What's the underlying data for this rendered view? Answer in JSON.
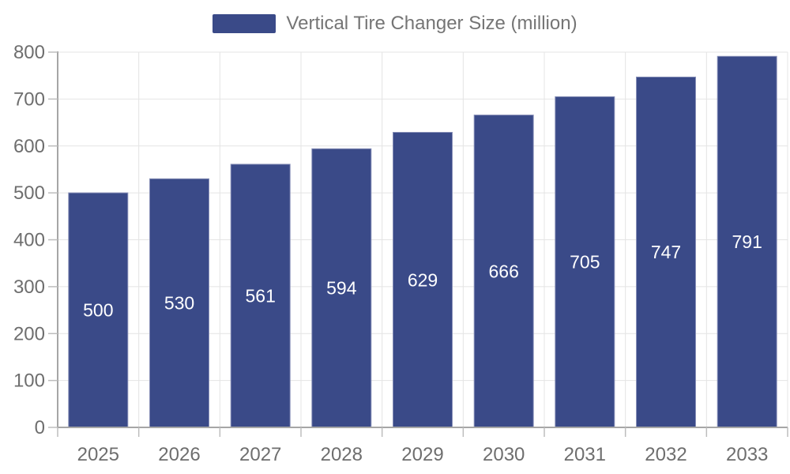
{
  "legend": {
    "label": "Vertical Tire Changer Size (million)",
    "swatch_color": "#3A4A88"
  },
  "chart_data": {
    "type": "bar",
    "title": "Vertical Tire Changer Size (million)",
    "series": [
      {
        "name": "Vertical Tire Changer Size (million)",
        "values": [
          500,
          530,
          561,
          594,
          629,
          666,
          705,
          747,
          791
        ]
      }
    ],
    "categories": [
      "2025",
      "2026",
      "2027",
      "2028",
      "2029",
      "2030",
      "2031",
      "2032",
      "2033"
    ],
    "xlabel": "",
    "ylabel": "",
    "ylim": [
      0,
      800
    ],
    "yticks": [
      0,
      100,
      200,
      300,
      400,
      500,
      600,
      700,
      800
    ],
    "grid": true,
    "legend_position": "top-center",
    "value_labels": "inside-center-white",
    "colors": {
      "bar": "#3A4A88",
      "bar_edge": "#8890b8",
      "gridline": "#e4e4e4",
      "axis_line": "#a6a6a6",
      "tick_mark": "#bdbdbd",
      "tick_label": "#6e6e6e",
      "value_label": "#ffffff"
    }
  }
}
